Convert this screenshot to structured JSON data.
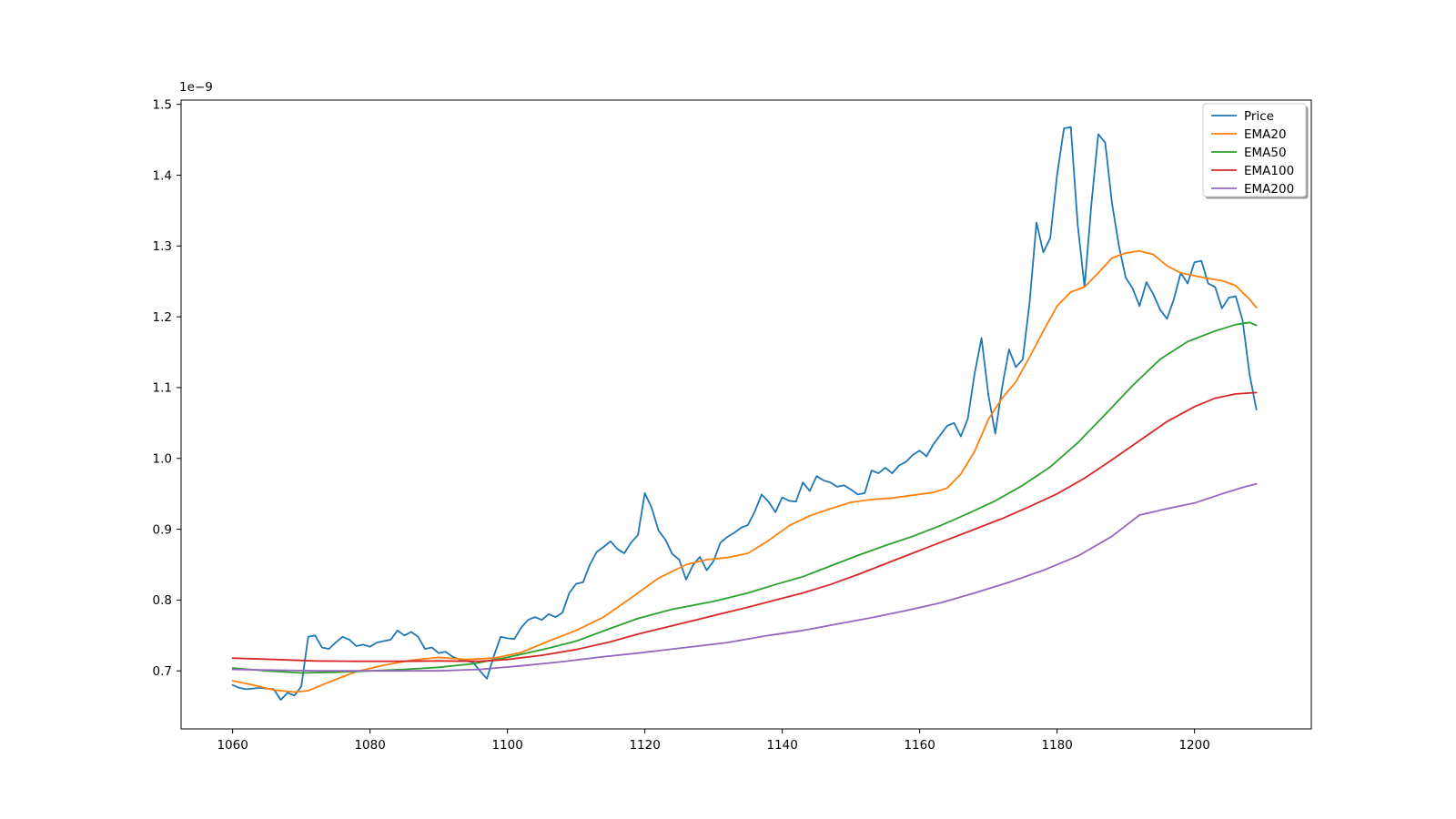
{
  "figure": {
    "background": "#ffffff",
    "spine_color": "#000000",
    "tick_label_color": "#000000"
  },
  "chart_data": {
    "type": "line",
    "title": "",
    "xlabel": "",
    "ylabel": "",
    "y_offset_label": "1e−9",
    "grid": false,
    "legend_position": "upper right",
    "legend_shadow": true,
    "xlim": [
      1052.5,
      1217
    ],
    "ylim": [
      0.618,
      1.506
    ],
    "x_ticks": [
      1060,
      1080,
      1100,
      1120,
      1140,
      1160,
      1180,
      1200
    ],
    "y_ticks": [
      0.7,
      0.8,
      0.9,
      1.0,
      1.1,
      1.2,
      1.3,
      1.4,
      1.5
    ],
    "series": [
      {
        "name": "Price",
        "color": "#1f77b4",
        "x_start": 1060,
        "x_step": 1,
        "values": [
          0.68,
          0.676,
          0.674,
          0.675,
          0.676,
          0.675,
          0.674,
          0.659,
          0.669,
          0.665,
          0.678,
          0.748,
          0.75,
          0.733,
          0.731,
          0.74,
          0.748,
          0.744,
          0.735,
          0.737,
          0.734,
          0.74,
          0.742,
          0.744,
          0.757,
          0.75,
          0.755,
          0.748,
          0.731,
          0.733,
          0.725,
          0.727,
          0.72,
          0.716,
          0.714,
          0.712,
          0.7,
          0.689,
          0.72,
          0.748,
          0.746,
          0.745,
          0.761,
          0.772,
          0.776,
          0.772,
          0.78,
          0.776,
          0.782,
          0.81,
          0.823,
          0.825,
          0.85,
          0.868,
          0.875,
          0.883,
          0.872,
          0.866,
          0.881,
          0.892,
          0.951,
          0.93,
          0.898,
          0.885,
          0.865,
          0.857,
          0.829,
          0.849,
          0.861,
          0.842,
          0.855,
          0.881,
          0.889,
          0.895,
          0.902,
          0.906,
          0.925,
          0.949,
          0.939,
          0.924,
          0.945,
          0.94,
          0.939,
          0.966,
          0.954,
          0.975,
          0.969,
          0.966,
          0.96,
          0.962,
          0.956,
          0.949,
          0.951,
          0.983,
          0.979,
          0.987,
          0.979,
          0.99,
          0.995,
          1.005,
          1.011,
          1.003,
          1.02,
          1.033,
          1.046,
          1.05,
          1.031,
          1.056,
          1.12,
          1.17,
          1.09,
          1.035,
          1.1,
          1.154,
          1.129,
          1.14,
          1.22,
          1.333,
          1.291,
          1.311,
          1.4,
          1.466,
          1.468,
          1.33,
          1.242,
          1.36,
          1.458,
          1.446,
          1.36,
          1.3,
          1.255,
          1.24,
          1.215,
          1.249,
          1.232,
          1.21,
          1.197,
          1.225,
          1.262,
          1.247,
          1.277,
          1.279,
          1.247,
          1.242,
          1.212,
          1.227,
          1.229,
          1.195,
          1.12,
          1.069
        ]
      },
      {
        "name": "EMA20",
        "color": "#ff7f0e",
        "x": [
          1060,
          1063,
          1066,
          1069,
          1071,
          1074,
          1078,
          1082,
          1086,
          1090,
          1094,
          1098,
          1102,
          1106,
          1110,
          1114,
          1118,
          1122,
          1126,
          1129,
          1132,
          1135,
          1138,
          1141,
          1144,
          1147,
          1150,
          1153,
          1156,
          1159,
          1162,
          1164,
          1166,
          1168,
          1170,
          1172,
          1174,
          1176,
          1178,
          1180,
          1182,
          1184,
          1186,
          1188,
          1190,
          1192,
          1194,
          1196,
          1198,
          1200,
          1202,
          1204,
          1206,
          1208,
          1209
        ],
        "y": [
          0.686,
          0.68,
          0.673,
          0.67,
          0.672,
          0.684,
          0.699,
          0.708,
          0.715,
          0.719,
          0.716,
          0.718,
          0.726,
          0.742,
          0.757,
          0.776,
          0.803,
          0.831,
          0.85,
          0.857,
          0.86,
          0.866,
          0.884,
          0.905,
          0.919,
          0.929,
          0.938,
          0.942,
          0.944,
          0.948,
          0.952,
          0.958,
          0.978,
          1.01,
          1.055,
          1.085,
          1.108,
          1.143,
          1.18,
          1.215,
          1.235,
          1.242,
          1.262,
          1.283,
          1.29,
          1.293,
          1.288,
          1.272,
          1.262,
          1.258,
          1.254,
          1.251,
          1.244,
          1.225,
          1.213
        ]
      },
      {
        "name": "EMA50",
        "color": "#2ca02c",
        "x": [
          1060,
          1065,
          1070,
          1075,
          1080,
          1085,
          1090,
          1095,
          1100,
          1106,
          1110,
          1115,
          1119,
          1124,
          1130,
          1135,
          1139,
          1143,
          1147,
          1151,
          1155,
          1159,
          1163,
          1167,
          1171,
          1175,
          1179,
          1183,
          1187,
          1191,
          1195,
          1199,
          1203,
          1206,
          1208,
          1209
        ],
        "y": [
          0.704,
          0.7,
          0.697,
          0.698,
          0.7,
          0.702,
          0.705,
          0.71,
          0.719,
          0.732,
          0.742,
          0.76,
          0.774,
          0.787,
          0.798,
          0.81,
          0.822,
          0.833,
          0.848,
          0.863,
          0.877,
          0.89,
          0.905,
          0.922,
          0.94,
          0.962,
          0.988,
          1.022,
          1.062,
          1.103,
          1.14,
          1.165,
          1.18,
          1.189,
          1.192,
          1.188
        ]
      },
      {
        "name": "EMA100",
        "color": "#d62728",
        "x": [
          1060,
          1066,
          1072,
          1078,
          1084,
          1090,
          1096,
          1100,
          1105,
          1110,
          1115,
          1119,
          1125,
          1130,
          1135,
          1139,
          1143,
          1147,
          1151,
          1156,
          1160,
          1164,
          1168,
          1172,
          1176,
          1180,
          1184,
          1188,
          1192,
          1196,
          1200,
          1203,
          1206,
          1209
        ],
        "y": [
          0.718,
          0.716,
          0.714,
          0.7135,
          0.7135,
          0.714,
          0.7135,
          0.716,
          0.722,
          0.73,
          0.741,
          0.752,
          0.766,
          0.778,
          0.79,
          0.8,
          0.81,
          0.822,
          0.836,
          0.855,
          0.87,
          0.885,
          0.9,
          0.915,
          0.932,
          0.95,
          0.972,
          0.998,
          1.025,
          1.052,
          1.073,
          1.085,
          1.091,
          1.093
        ]
      },
      {
        "name": "EMA200",
        "color": "#9467bd",
        "x": [
          1060,
          1066,
          1072,
          1078,
          1084,
          1090,
          1096,
          1102,
          1108,
          1114,
          1119,
          1126,
          1132,
          1138,
          1143,
          1148,
          1153,
          1158,
          1163,
          1168,
          1173,
          1178,
          1183,
          1188,
          1192,
          1196,
          1200,
          1204,
          1207,
          1209
        ],
        "y": [
          0.702,
          0.701,
          0.7,
          0.7,
          0.7,
          0.7,
          0.702,
          0.707,
          0.713,
          0.72,
          0.725,
          0.733,
          0.74,
          0.75,
          0.757,
          0.766,
          0.775,
          0.785,
          0.796,
          0.81,
          0.825,
          0.842,
          0.862,
          0.89,
          0.92,
          0.929,
          0.937,
          0.95,
          0.959,
          0.964
        ]
      }
    ]
  }
}
